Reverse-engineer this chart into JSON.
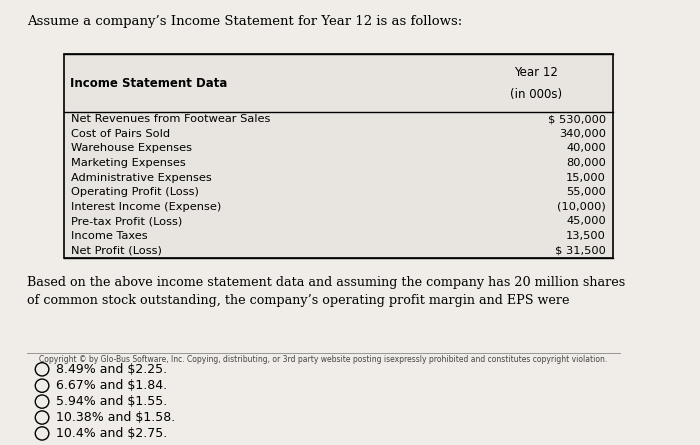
{
  "title": "Assume a company’s Income Statement for Year 12 is as follows:",
  "col_header_1": "Income Statement Data",
  "rows": [
    [
      "Net Revenues from Footwear Sales",
      "$ 530,000"
    ],
    [
      "Cost of Pairs Sold",
      "340,000"
    ],
    [
      "Warehouse Expenses",
      "40,000"
    ],
    [
      "Marketing Expenses",
      "80,000"
    ],
    [
      "Administrative Expenses",
      "15,000"
    ],
    [
      "Operating Profit (Loss)",
      "55,000"
    ],
    [
      "Interest Income (Expense)",
      "(10,000)"
    ],
    [
      "Pre-tax Profit (Loss)",
      "45,000"
    ],
    [
      "Income Taxes",
      "13,500"
    ],
    [
      "Net Profit (Loss)",
      "$ 31,500"
    ]
  ],
  "question_text": "Based on the above income statement data and assuming the company has 20 million shares\nof common stock outstanding, the company’s operating profit margin and EPS were",
  "copyright_text": "Copyright © by Glo-Bus Software, Inc. Copying, distributing, or 3rd party website posting isexpressly prohibited and constitutes copyright violation.",
  "choices": [
    "8.49% and $2.25.",
    "6.67% and $1.84.",
    "5.94% and $1.55.",
    "10.38% and $1.58.",
    "10.4% and $2.75."
  ],
  "bg_color": "#f0ede8",
  "table_bg": "#e8e5e0",
  "border_color": "#000000",
  "text_color": "#000000"
}
